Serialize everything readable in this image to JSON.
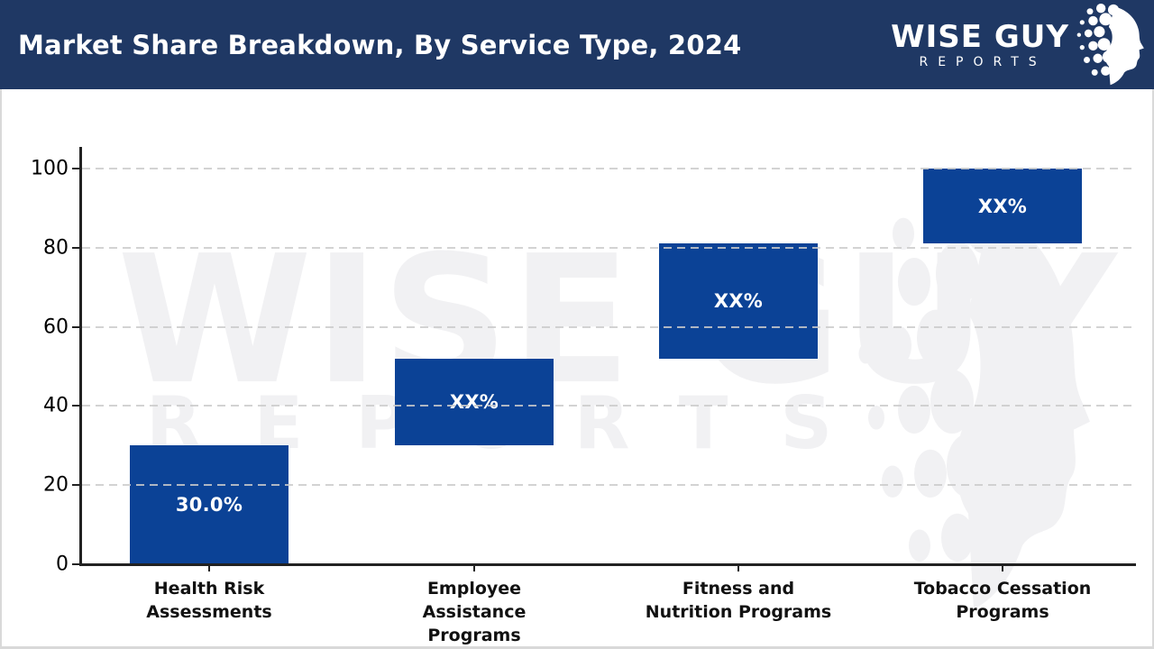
{
  "header": {
    "title": "Market Share Breakdown, By Service Type, 2024",
    "bg_color": "#1f3864",
    "logo": {
      "line1": "WISE GUY",
      "line2": "REPORTS"
    }
  },
  "watermark": {
    "line1": "WISE GUY",
    "line2": "REPORTS"
  },
  "chart_data": {
    "type": "bar",
    "subtype": "waterfall-stepped-market-share",
    "title": "Market Share Breakdown, By Service Type, 2024",
    "categories": [
      "Health Risk\nAssessments",
      "Employee\nAssistance\nPrograms",
      "Fitness and\nNutrition Programs",
      "Tobacco Cessation\nPrograms"
    ],
    "segments": [
      {
        "start": 0,
        "end": 30,
        "label": "30.0%"
      },
      {
        "start": 30,
        "end": 52,
        "label": "XX%"
      },
      {
        "start": 52,
        "end": 81,
        "label": "XX%"
      },
      {
        "start": 81,
        "end": 100,
        "label": "XX%"
      }
    ],
    "xlabel": "",
    "ylabel": "",
    "ylim": [
      0,
      100
    ],
    "yticks": [
      0,
      20,
      40,
      60,
      80,
      100
    ],
    "grid": "horizontal-dashed",
    "grid_color": "#d9d9d9",
    "bar_color": "#0b4296",
    "value_label_color": "#ffffff",
    "legend": "none"
  }
}
